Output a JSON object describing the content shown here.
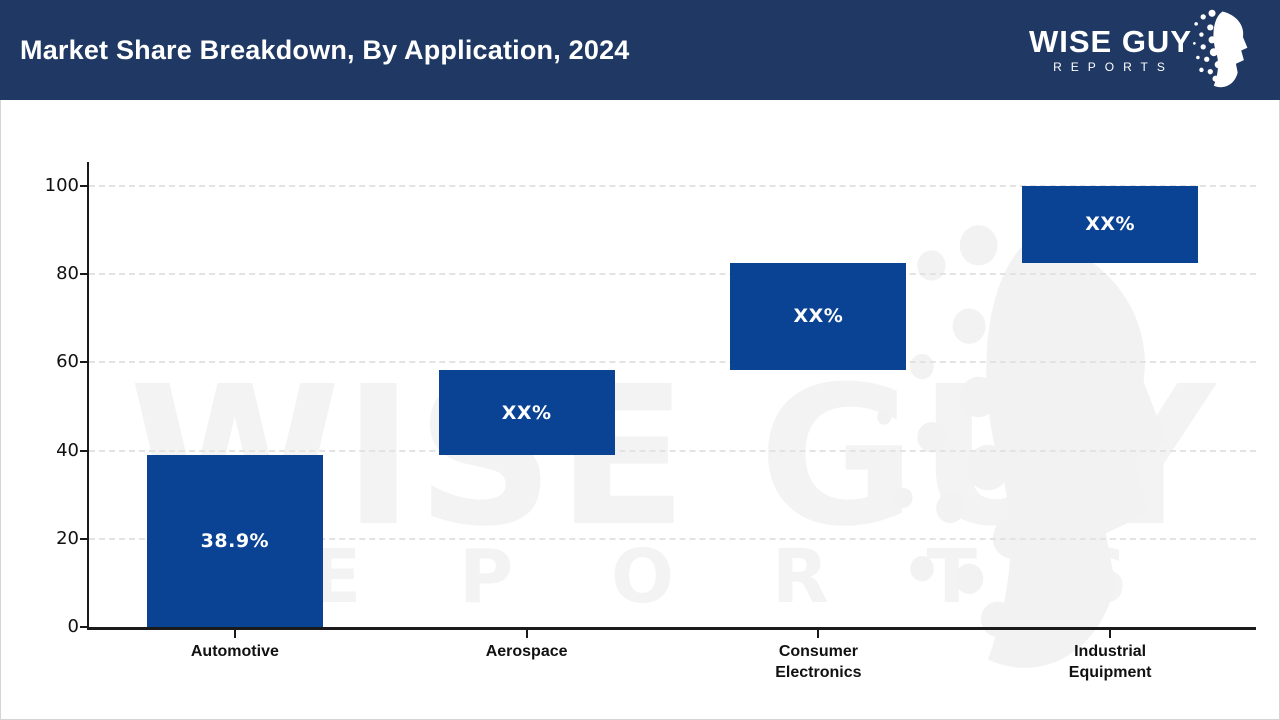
{
  "header": {
    "title": "Market Share Breakdown, By Application, 2024",
    "logo": {
      "line1": "WISE GUY",
      "line2": "REPORTS"
    }
  },
  "watermark": {
    "line1": "WISE GUY",
    "line2": "R E P O R T S"
  },
  "colors": {
    "header_background": "#1f3864",
    "bar_fill": "#0a4394",
    "bar_label": "#ffffff",
    "axis": "#1a1a1a",
    "gridline": "#e3e3e3",
    "watermark": "#f3f3f3"
  },
  "chart_data": {
    "type": "bar",
    "variant": "waterfall",
    "title": "Market Share Breakdown, By Application, 2024",
    "categories": [
      "Automotive",
      "Aerospace",
      "Consumer Electronics",
      "Industrial Equipment"
    ],
    "category_lines": [
      [
        "Automotive"
      ],
      [
        "Aerospace"
      ],
      [
        "Consumer",
        "Electronics"
      ],
      [
        "Industrial",
        "Equipment"
      ]
    ],
    "bars": [
      {
        "category": "Automotive",
        "start": 0,
        "end": 38.9,
        "label": "38.9%"
      },
      {
        "category": "Aerospace",
        "start": 38.9,
        "end": 58.3,
        "label": "XX%"
      },
      {
        "category": "Consumer Electronics",
        "start": 58.3,
        "end": 82.6,
        "label": "XX%"
      },
      {
        "category": "Industrial Equipment",
        "start": 82.6,
        "end": 100,
        "label": "XX%"
      }
    ],
    "xlabel": "",
    "ylabel": "",
    "ylim": [
      0,
      105
    ],
    "yticks": [
      0,
      20,
      40,
      60,
      80,
      100
    ],
    "grid": "horizontal dashed",
    "legend": "none"
  }
}
